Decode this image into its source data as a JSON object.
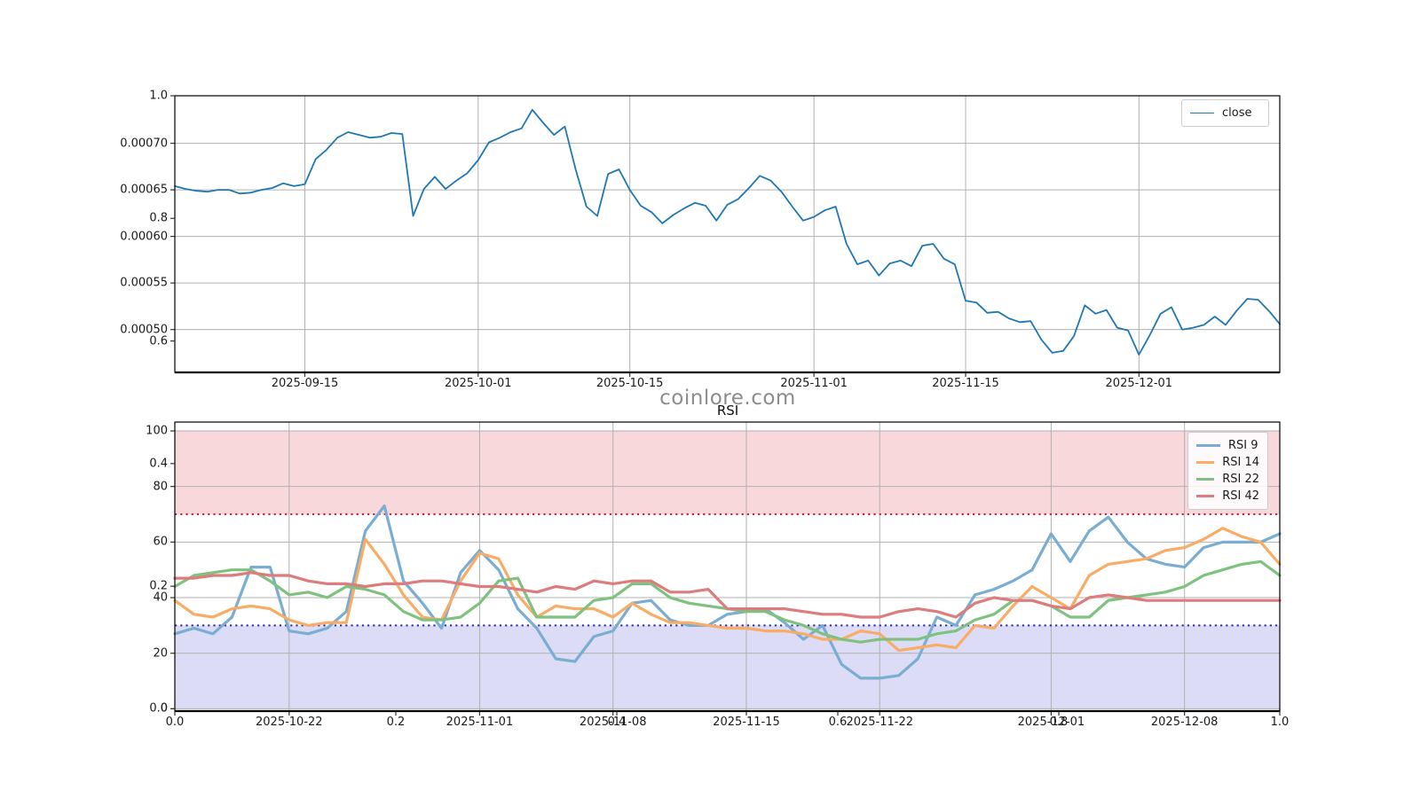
{
  "watermark": "coinlore.com",
  "colors": {
    "close_line": "#1F77B4",
    "rsi9": "#79ADD2",
    "rsi14": "#F8AC66",
    "rsi22": "#7FC27F",
    "rsi42": "#DC7C7C",
    "overbought_band": "#F9D8DB",
    "oversold_band": "#DCDCF6",
    "overbought_line": "#D62030",
    "oversold_line": "#2A2AB0",
    "grid": "#b0b0b0",
    "spine": "#000000",
    "watermark_color": "#8c8c8c"
  },
  "overlay_axis": {
    "y_tick_labels": [
      "1.0",
      "0.8",
      "0.6",
      "0.4",
      "0.2",
      "0.0"
    ],
    "x_tick_labels": [
      "0.0",
      "0.2",
      "0.4",
      "0.6",
      "0.8",
      "1.0"
    ]
  },
  "chart_data": [
    {
      "type": "line",
      "title": "",
      "legend_position": "upper right",
      "grid": true,
      "ylim": [
        0.000454,
        0.000751
      ],
      "y_ticks": [
        {
          "label": "0.00050",
          "value": 0.0005
        },
        {
          "label": "0.00055",
          "value": 0.00055
        },
        {
          "label": "0.00060",
          "value": 0.0006
        },
        {
          "label": "0.00065",
          "value": 0.00065
        },
        {
          "label": "0.00070",
          "value": 0.0007
        }
      ],
      "x_tick_labels": [
        "2025-09-15",
        "2025-10-01",
        "2025-10-15",
        "2025-11-01",
        "2025-11-15",
        "2025-12-01"
      ],
      "x_tick_indices": [
        12,
        28,
        42,
        59,
        73,
        89
      ],
      "series": [
        {
          "name": "close",
          "color_key": "close_line",
          "line_width": 1.8,
          "values": [
            0.000654,
            0.000651,
            0.000649,
            0.000648,
            0.00065,
            0.00065,
            0.000646,
            0.000647,
            0.00065,
            0.000652,
            0.000657,
            0.000654,
            0.000656,
            0.000683,
            0.000693,
            0.000706,
            0.000712,
            0.000709,
            0.000706,
            0.000707,
            0.000711,
            0.00071,
            0.000622,
            0.000651,
            0.000664,
            0.000651,
            0.00066,
            0.000668,
            0.000682,
            0.000701,
            0.000706,
            0.000712,
            0.000716,
            0.000736,
            0.000722,
            0.000709,
            0.000718,
            0.000672,
            0.000632,
            0.000622,
            0.000667,
            0.000672,
            0.00065,
            0.000633,
            0.000626,
            0.000614,
            0.000623,
            0.00063,
            0.000636,
            0.000633,
            0.000617,
            0.000634,
            0.00064,
            0.000652,
            0.000665,
            0.00066,
            0.000648,
            0.000632,
            0.000617,
            0.000621,
            0.000628,
            0.000632,
            0.000592,
            0.00057,
            0.000574,
            0.000558,
            0.000571,
            0.000574,
            0.000568,
            0.00059,
            0.000592,
            0.000576,
            0.00057,
            0.000531,
            0.000529,
            0.000518,
            0.000519,
            0.000512,
            0.000508,
            0.000509,
            0.000489,
            0.000475,
            0.000477,
            0.000493,
            0.000526,
            0.000517,
            0.000521,
            0.000502,
            0.000499,
            0.000473,
            0.000494,
            0.000517,
            0.000524,
            0.0005,
            0.000502,
            0.000505,
            0.000514,
            0.000505,
            0.00052,
            0.000533,
            0.000532,
            0.00052,
            0.000506
          ]
        }
      ]
    },
    {
      "type": "line",
      "title": "RSI",
      "legend_position": "upper right",
      "grid": true,
      "ylim": [
        -1,
        103.2
      ],
      "y_ticks": [
        {
          "label": "0",
          "value": 0
        },
        {
          "label": "20",
          "value": 20
        },
        {
          "label": "40",
          "value": 40
        },
        {
          "label": "60",
          "value": 60
        },
        {
          "label": "80",
          "value": 80
        },
        {
          "label": "100",
          "value": 100
        }
      ],
      "x_tick_labels": [
        "2025-10-22",
        "2025-11-01",
        "2025-11-08",
        "2025-11-15",
        "2025-11-22",
        "2025-12-01",
        "2025-12-08"
      ],
      "x_tick_indices": [
        6,
        16,
        23,
        30,
        37,
        46,
        53
      ],
      "overbought": {
        "level": 70,
        "band": [
          70,
          100
        ],
        "line_color_key": "overbought_line",
        "band_color_key": "overbought_band"
      },
      "oversold": {
        "level": 30,
        "band": [
          0,
          30
        ],
        "line_color_key": "oversold_line",
        "band_color_key": "oversold_band"
      },
      "series": [
        {
          "name": "RSI 9",
          "color_key": "rsi9",
          "line_width": 3.2,
          "values": [
            27,
            29,
            27,
            33,
            51,
            51,
            28,
            27,
            29,
            35,
            64,
            73,
            46,
            38,
            29,
            49,
            57,
            50,
            36,
            29,
            18,
            17,
            26,
            28,
            38,
            39,
            32,
            30,
            30,
            34,
            35,
            36,
            31,
            25,
            30,
            16,
            11,
            11,
            12,
            18,
            33,
            30,
            41,
            43,
            46,
            50,
            63,
            53,
            64,
            69,
            60,
            54,
            52,
            51,
            58,
            60,
            60,
            60,
            63
          ]
        },
        {
          "name": "RSI 14",
          "color_key": "rsi14",
          "line_width": 3.2,
          "values": [
            39,
            34,
            33,
            36,
            37,
            36,
            32,
            30,
            31,
            31,
            61,
            52,
            41,
            33,
            32,
            46,
            56,
            54,
            41,
            33,
            37,
            36,
            36,
            33,
            38,
            34,
            31,
            31,
            30,
            29,
            29,
            28,
            28,
            27,
            25,
            25,
            28,
            27,
            21,
            22,
            23,
            22,
            30,
            29,
            37,
            44,
            40,
            36,
            48,
            52,
            53,
            54,
            57,
            58,
            61,
            65,
            62,
            60,
            52
          ]
        },
        {
          "name": "RSI 22",
          "color_key": "rsi22",
          "line_width": 3.2,
          "values": [
            44,
            48,
            49,
            50,
            50,
            46,
            41,
            42,
            40,
            44,
            43,
            41,
            35,
            32,
            32,
            33,
            38,
            46,
            47,
            33,
            33,
            33,
            39,
            40,
            45,
            45,
            40,
            38,
            37,
            36,
            35,
            35,
            32,
            30,
            27,
            25,
            24,
            25,
            25,
            25,
            27,
            28,
            32,
            34,
            39,
            39,
            37,
            33,
            33,
            39,
            40,
            41,
            42,
            44,
            48,
            50,
            52,
            53,
            48
          ]
        },
        {
          "name": "RSI 42",
          "color_key": "rsi42",
          "line_width": 3.2,
          "values": [
            47,
            47,
            48,
            48,
            49,
            48,
            48,
            46,
            45,
            45,
            44,
            45,
            45,
            46,
            46,
            45,
            44,
            44,
            43,
            42,
            44,
            43,
            46,
            45,
            46,
            46,
            42,
            42,
            43,
            36,
            36,
            36,
            36,
            35,
            34,
            34,
            33,
            33,
            35,
            36,
            35,
            33,
            38,
            40,
            39,
            39,
            37,
            36,
            40,
            41,
            40,
            39,
            39,
            39,
            39,
            39,
            39,
            39,
            39
          ]
        }
      ]
    }
  ]
}
